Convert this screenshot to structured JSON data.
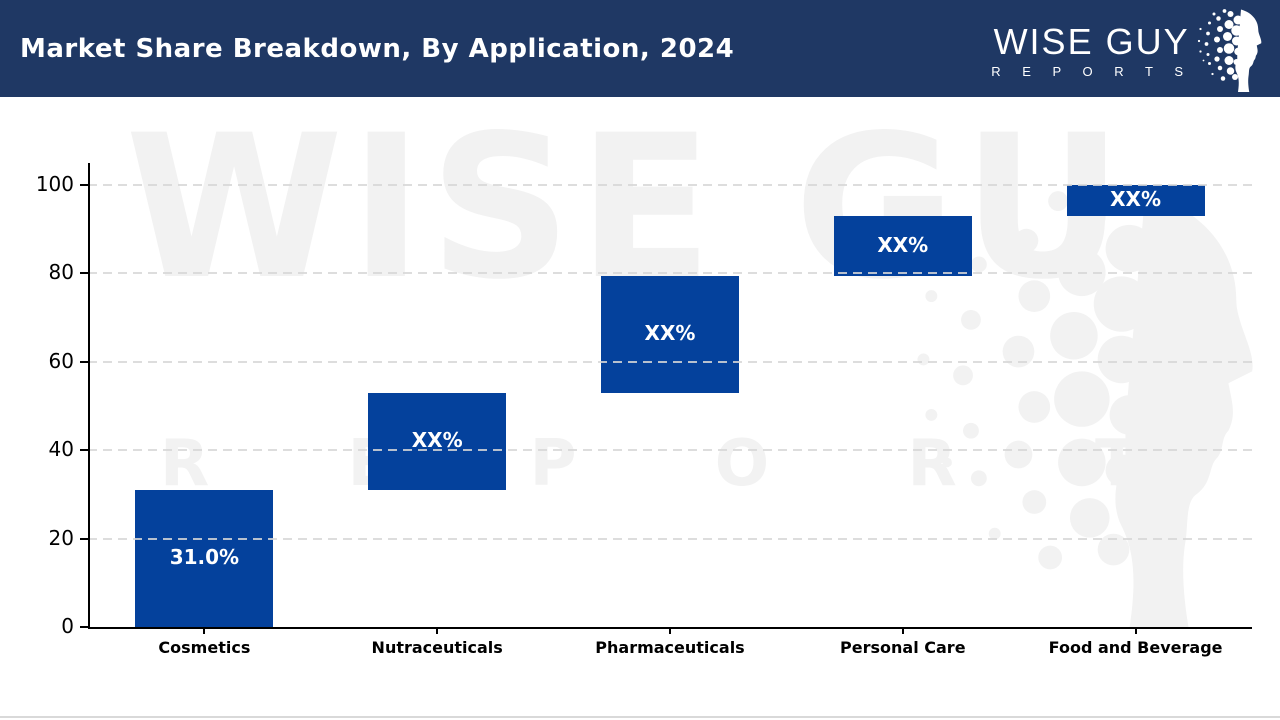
{
  "header": {
    "title": "Market Share Breakdown, By Application, 2024",
    "bg_color": "#1f3864",
    "logo": {
      "line1": "WISE GUY",
      "line2": "R E P O R T S"
    }
  },
  "watermark": {
    "line1": "WISE GUY",
    "line2": "R E P O R T S",
    "color": "#f2f2f2"
  },
  "chart_data": {
    "type": "bar",
    "subtype": "waterfall",
    "title": "Market Share Breakdown, By Application, 2024",
    "categories": [
      "Cosmetics",
      "Nutraceuticals",
      "Pharmaceuticals",
      "Personal Care",
      "Food and Beverage"
    ],
    "segments": [
      {
        "category": "Cosmetics",
        "start": 0,
        "end": 31,
        "label": "31.0%"
      },
      {
        "category": "Nutraceuticals",
        "start": 31,
        "end": 53,
        "label": "XX%"
      },
      {
        "category": "Pharmaceuticals",
        "start": 53,
        "end": 79.5,
        "label": "XX%"
      },
      {
        "category": "Personal Care",
        "start": 79.5,
        "end": 93,
        "label": "XX%"
      },
      {
        "category": "Food and Beverage",
        "start": 93,
        "end": 100,
        "label": "XX%"
      }
    ],
    "y_ticks": [
      0,
      20,
      40,
      60,
      80,
      100
    ],
    "ylim": [
      0,
      105
    ],
    "bar_color": "#04419c",
    "bar_label_color": "#ffffff",
    "axis_color": "#000000",
    "grid": true,
    "grid_style": "dashed",
    "legend": false
  }
}
